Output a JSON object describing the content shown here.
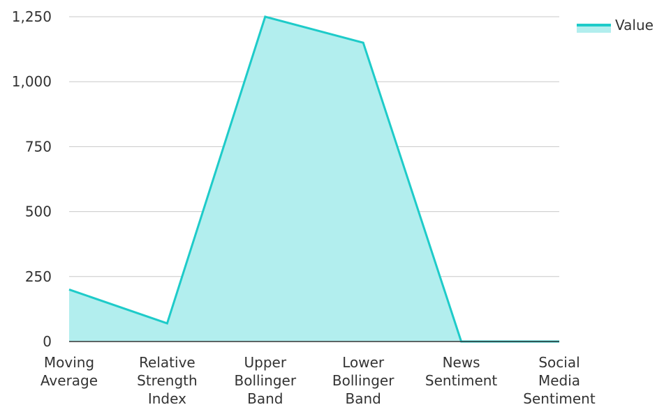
{
  "chart_data": {
    "type": "area",
    "categories": [
      "Moving Average",
      "Relative Strength Index",
      "Upper Bollinger Band",
      "Lower Bollinger Band",
      "News Sentiment",
      "Social Media Sentiment"
    ],
    "category_label_lines": [
      [
        "Moving",
        "Average"
      ],
      [
        "Relative",
        "Strength",
        "Index"
      ],
      [
        "Upper",
        "Bollinger",
        "Band"
      ],
      [
        "Lower",
        "Bollinger",
        "Band"
      ],
      [
        "News",
        "Sentiment"
      ],
      [
        "Social",
        "Media",
        "Sentiment"
      ]
    ],
    "series": [
      {
        "name": "Value",
        "values": [
          200,
          70,
          1250,
          1150,
          0,
          0
        ],
        "line_color": "#1ecbc9",
        "fill_color": "#b2eeee"
      }
    ],
    "ylim": [
      0,
      1250
    ],
    "y_ticks": [
      0,
      250,
      500,
      750,
      1000,
      1250
    ],
    "y_tick_labels": [
      "0",
      "250",
      "500",
      "750",
      "1,000",
      "1,250"
    ],
    "grid": true,
    "legend_position": "top-right",
    "title": "",
    "xlabel": "",
    "ylabel": ""
  }
}
